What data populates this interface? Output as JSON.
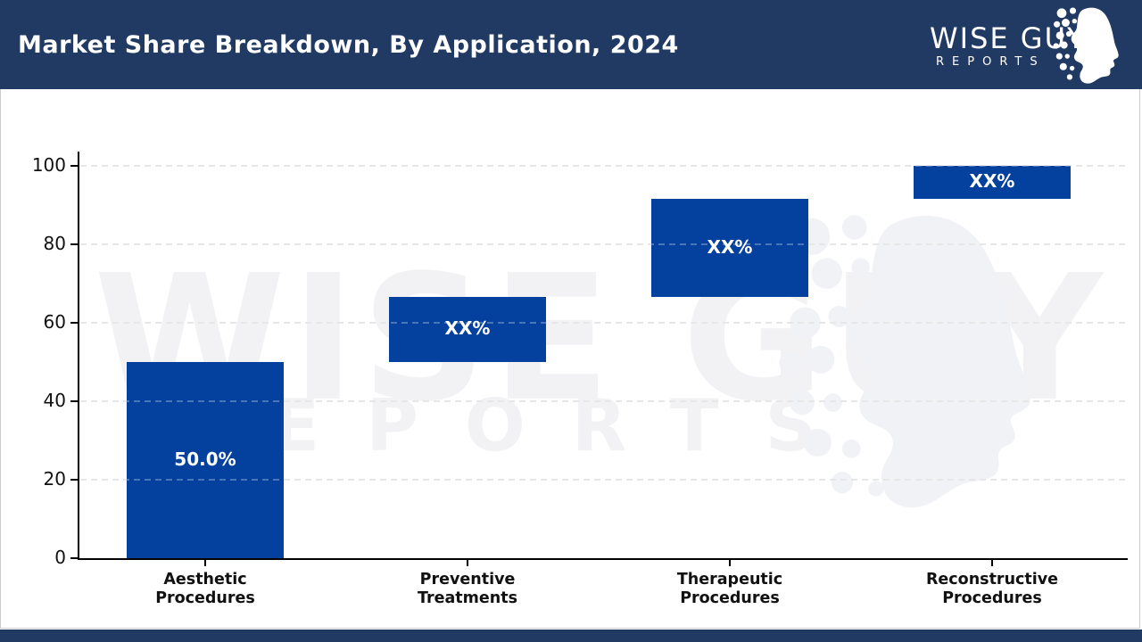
{
  "header": {
    "title": "Market Share Breakdown, By Application, 2024",
    "logo": {
      "wise": "WISE GUY",
      "reports": "REPORTS"
    }
  },
  "watermark": {
    "wise": "WISE GUY",
    "reports": "REPORTS"
  },
  "colors": {
    "header_bg": "#213a64",
    "bar": "#04419e",
    "bar_label": "#ffffff",
    "gridline": "#dedede",
    "watermark": "#f2f2f5"
  },
  "chart_data": {
    "type": "bar",
    "subtype": "waterfall",
    "title": "Market Share Breakdown, By Application, 2024",
    "unit": "%",
    "categories": [
      "Aesthetic Procedures",
      "Preventive Treatments",
      "Therapeutic Procedures",
      "Reconstructive Procedures"
    ],
    "x_tick_labels": [
      "Aesthetic\nProcedures",
      "Preventive\nTreatments",
      "Therapeutic\nProcedures",
      "Reconstructive\nProcedures"
    ],
    "series": [
      {
        "name": "Market Share",
        "segments": [
          {
            "category": "Aesthetic Procedures",
            "start": 0,
            "end": 50,
            "value": 50.0,
            "label": "50.0%"
          },
          {
            "category": "Preventive Treatments",
            "start": 50,
            "end": 66.7,
            "value": 16.7,
            "label": "XX%"
          },
          {
            "category": "Therapeutic Procedures",
            "start": 66.7,
            "end": 91.7,
            "value": 25.0,
            "label": "XX%"
          },
          {
            "category": "Reconstructive Procedures",
            "start": 91.7,
            "end": 100,
            "value": 8.3,
            "label": "XX%"
          }
        ]
      }
    ],
    "ylim": [
      0,
      100
    ],
    "yticks": [
      0,
      20,
      40,
      60,
      80,
      100
    ],
    "xlabel": "",
    "ylabel": "",
    "grid": "horizontal dashed, drawn over bars",
    "legend": "none"
  }
}
